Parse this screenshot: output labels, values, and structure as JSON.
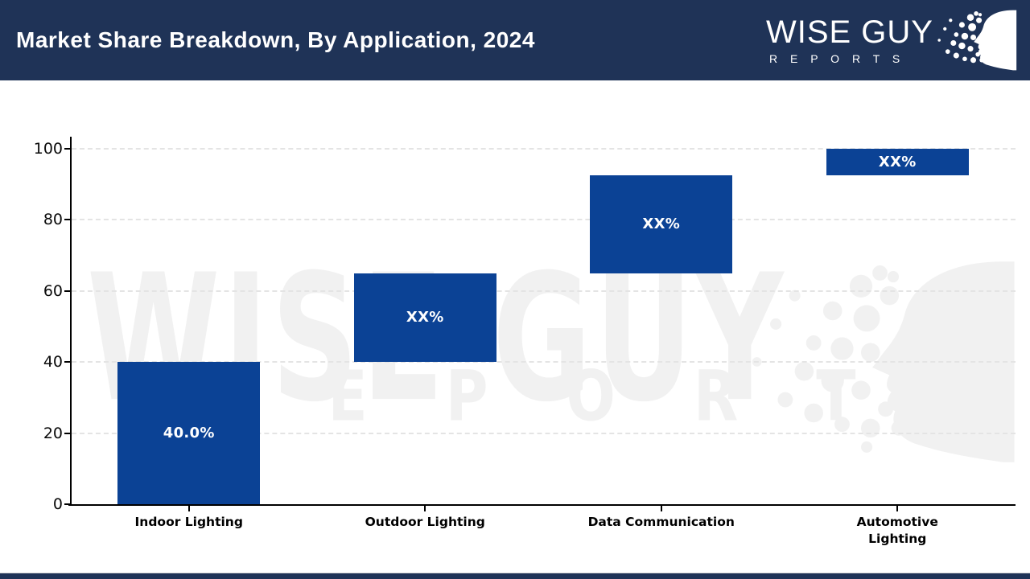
{
  "header": {
    "title": "Market Share Breakdown, By Application, 2024",
    "logo_line1": "WISE GUY",
    "logo_line2": "R E P O R T S"
  },
  "watermark": {
    "line1": "WISE GUY",
    "line2": "R E P O R T S"
  },
  "colors": {
    "header_bg": "#1f3357",
    "footer_bg": "#1f3357",
    "bar": "#0b4295",
    "bar_label_text": "#ffffff",
    "axis": "#000000",
    "gridline": "#e4e4e4",
    "watermark": "#f1f1f1"
  },
  "chart_data": {
    "type": "bar",
    "subtype": "stacked-waterfall",
    "title": "Market Share Breakdown, By Application, 2024",
    "xlabel": "",
    "ylabel": "",
    "ylim": [
      0,
      104
    ],
    "yticks": [
      0,
      20,
      40,
      60,
      80,
      100
    ],
    "grid": "horizontal-dashed",
    "legend": "none",
    "categories": [
      "Indoor Lighting",
      "Outdoor Lighting",
      "Data Communication",
      "Automotive Lighting"
    ],
    "category_display": [
      "Indoor Lighting",
      "Outdoor Lighting",
      "Data Communication",
      "Automotive\nLighting"
    ],
    "segments": [
      {
        "category": "Indoor Lighting",
        "start": 0,
        "end": 40,
        "value": 40.0,
        "value_label": "40.0%"
      },
      {
        "category": "Outdoor Lighting",
        "start": 40,
        "end": 65,
        "value": 25,
        "value_label": "XX%"
      },
      {
        "category": "Data Communication",
        "start": 65,
        "end": 92.5,
        "value": 27.5,
        "value_label": "XX%"
      },
      {
        "category": "Automotive Lighting",
        "start": 92.5,
        "end": 100,
        "value": 7.5,
        "value_label": "XX%"
      }
    ]
  }
}
